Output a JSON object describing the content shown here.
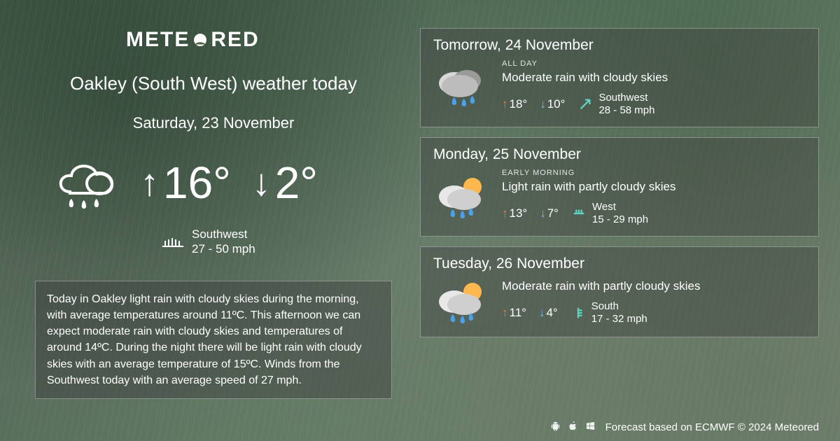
{
  "brand": {
    "name_a": "METE",
    "name_b": "RED"
  },
  "location_title": "Oakley (South West) weather today",
  "date_title": "Saturday, 23 November",
  "today": {
    "hi": "16°",
    "lo": "2°",
    "wind_dir": "Southwest",
    "wind_speed": "27 - 50 mph",
    "description": "Today in Oakley light rain with cloudy skies during the morning, with average temperatures around 11ºC. This afternoon we can expect moderate rain with cloudy skies and temperatures of around 14ºC. During the night there will be light rain with cloudy skies with an average temperature of 15ºC. Winds from the Southwest today with an average speed of 27 mph."
  },
  "forecast": [
    {
      "date": "Tomorrow, 24 November",
      "period": "ALL DAY",
      "condition": "Moderate rain with cloudy skies",
      "hi": "18°",
      "lo": "10°",
      "wind_dir": "Southwest",
      "wind_speed": "28 - 58 mph",
      "icon": "rain"
    },
    {
      "date": "Monday, 25 November",
      "period": "EARLY MORNING",
      "condition": "Light rain with partly cloudy skies",
      "hi": "13°",
      "lo": "7°",
      "wind_dir": "West",
      "wind_speed": "15 - 29 mph",
      "icon": "partly_rain"
    },
    {
      "date": "Tuesday, 26 November",
      "period": "",
      "condition": "Moderate rain with partly cloudy skies",
      "hi": "11°",
      "lo": "4°",
      "wind_dir": "South",
      "wind_speed": "17 - 32 mph",
      "icon": "partly_rain"
    }
  ],
  "footer": {
    "text": "Forecast based on ECMWF © 2024 Meteored"
  },
  "colors": {
    "hi_arrow": "#ff7050",
    "lo_arrow": "#6fb8ff",
    "wind_icon": "#5dd4c4"
  }
}
